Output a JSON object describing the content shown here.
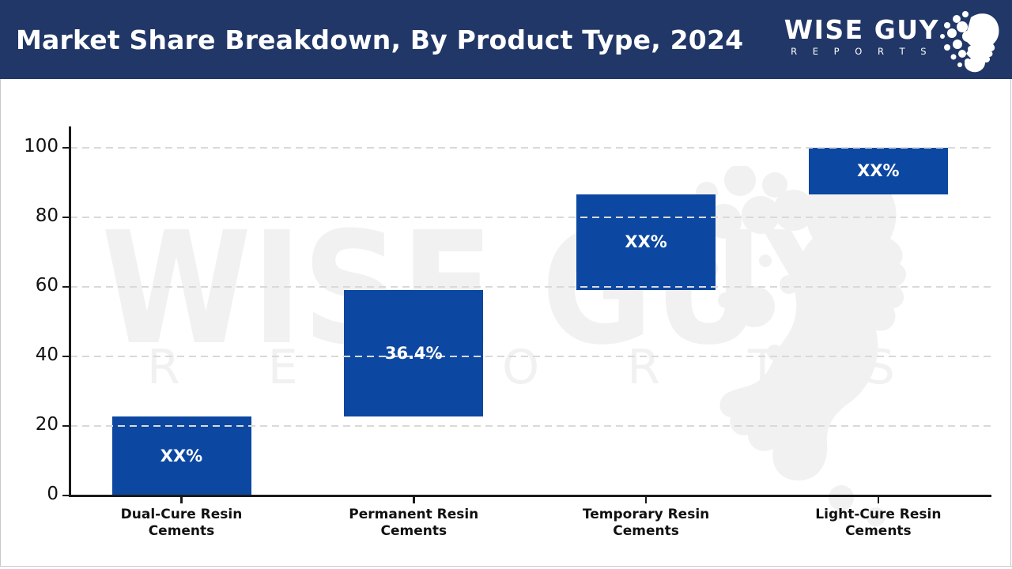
{
  "header": {
    "title": "Market Share Breakdown, By Product Type, 2024",
    "logo": {
      "wordmark": "WISE GUY",
      "subtext": "R E P O R T S"
    },
    "bg_color": "#213768"
  },
  "watermark": {
    "wordmark": "WISE GUY",
    "subtext": "R E P O R T S"
  },
  "chart_data": {
    "type": "bar",
    "subtype": "floating-waterfall",
    "title": "Market Share Breakdown, By Product Type, 2024",
    "categories": [
      "Dual-Cure Resin\nCements",
      "Permanent Resin\nCements",
      "Temporary Resin\nCements",
      "Light-Cure Resin\nCements"
    ],
    "bars": [
      {
        "category": "Dual-Cure Resin Cements",
        "label": "XX%",
        "base": 0,
        "top": 22.7
      },
      {
        "category": "Permanent Resin Cements",
        "label": "36.4%",
        "base": 22.7,
        "top": 59.1
      },
      {
        "category": "Temporary Resin Cements",
        "label": "XX%",
        "base": 59.1,
        "top": 86.6
      },
      {
        "category": "Light-Cure Resin Cements",
        "label": "XX%",
        "base": 86.6,
        "top": 100
      }
    ],
    "yticks": [
      0,
      20,
      40,
      60,
      80,
      100
    ],
    "ylim": [
      0,
      106
    ],
    "xlabel": "",
    "ylabel": "",
    "grid": "horizontal-dashed-over-bars",
    "legend": "none",
    "bar_color": "#0c47a1",
    "label_color": "#ffffff",
    "axis_color": "#1a1a1a",
    "grid_color": "#d9d9d9"
  }
}
